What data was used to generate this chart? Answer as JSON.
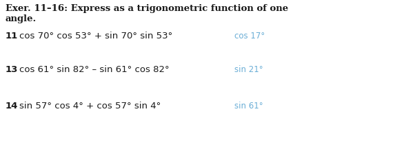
{
  "background_color": "#ffffff",
  "title_line1": "Exer. 11–16: Express as a trigonometric function of one",
  "title_line2": "angle.",
  "rows": [
    {
      "number": "11",
      "expression": "cos 70° cos 53° + sin 70° sin 53°",
      "answer": "cos 17°"
    },
    {
      "number": "13",
      "expression": "cos 61° sin 82° – sin 61° cos 82°",
      "answer": "sin 21°"
    },
    {
      "number": "14",
      "expression": "sin 57° cos 4° + cos 57° sin 4°",
      "answer": "sin 61°"
    }
  ],
  "text_color": "#1a1a1a",
  "answer_color": "#6baed6",
  "title_fontsize": 9.5,
  "body_fontsize": 9.5,
  "fig_width": 6.02,
  "fig_height": 2.2,
  "dpi": 100
}
